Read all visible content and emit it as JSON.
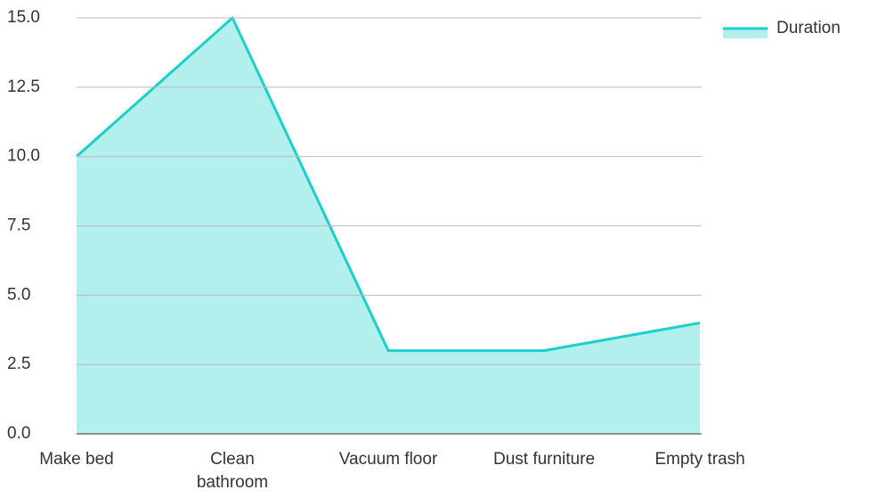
{
  "chart_data": {
    "type": "area",
    "categories": [
      "Make bed",
      "Clean bathroom",
      "Vacuum floor",
      "Dust furniture",
      "Empty trash"
    ],
    "series": [
      {
        "name": "Duration",
        "color": "#1ccfcb",
        "fill": "#b3efed",
        "values": [
          10,
          15,
          3,
          3,
          4
        ]
      }
    ],
    "ylim": [
      0,
      15
    ],
    "yticks": [
      {
        "value": 0,
        "label": "0.0"
      },
      {
        "value": 2.5,
        "label": "2.5"
      },
      {
        "value": 5,
        "label": "5.0"
      },
      {
        "value": 7.5,
        "label": "7.5"
      },
      {
        "value": 10,
        "label": "10.0"
      },
      {
        "value": 12.5,
        "label": "12.5"
      },
      {
        "value": 15,
        "label": "15.0"
      }
    ],
    "grid": true,
    "legend": "top-right"
  }
}
